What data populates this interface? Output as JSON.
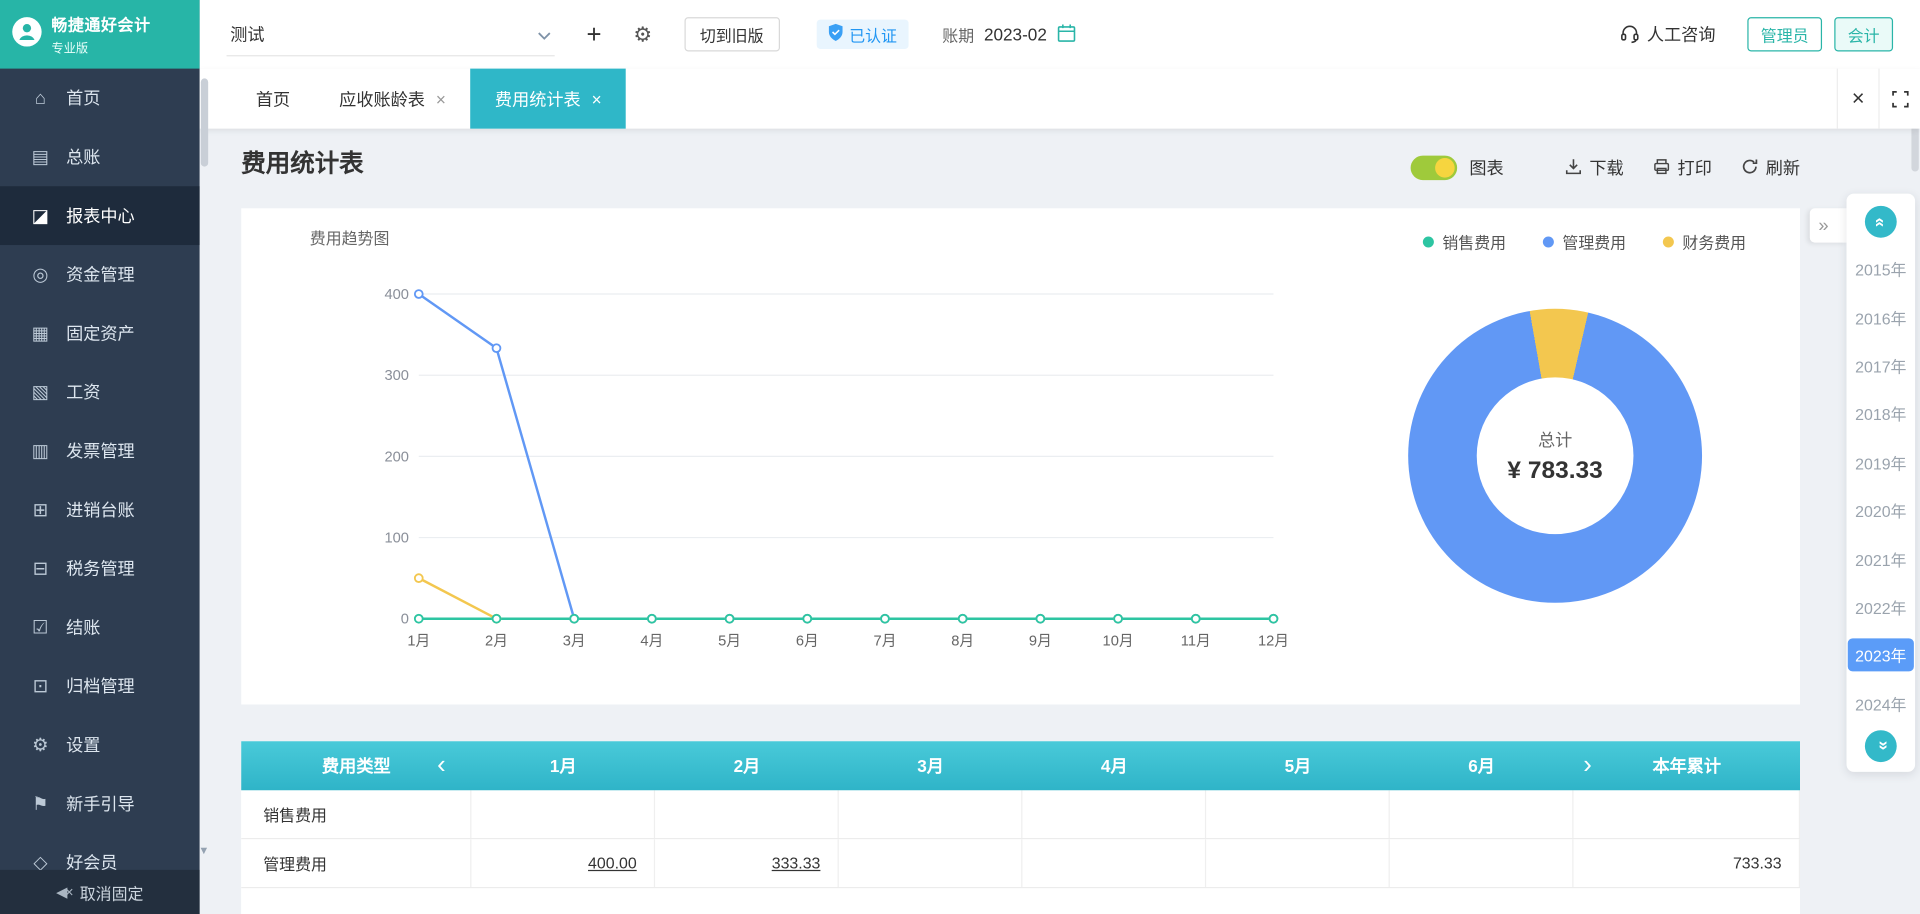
{
  "app": {
    "brand": "畅捷通好会计",
    "edition": "专业版",
    "account_set": "测试",
    "switch_old_label": "切到旧版",
    "certified_label": "已认证",
    "period_label": "账期",
    "period_value": "2023-02",
    "support_label": "人工咨询",
    "admin_label": "管理员",
    "accountant_label": "会计",
    "accent_teal": "#2ab5a8",
    "accent_cyan": "#2fb7c8"
  },
  "sidebar": {
    "items": [
      {
        "label": "首页",
        "icon": "home-icon"
      },
      {
        "label": "总账",
        "icon": "ledger-icon"
      },
      {
        "label": "报表中心",
        "icon": "report-center-icon",
        "active": true
      },
      {
        "label": "资金管理",
        "icon": "funds-icon"
      },
      {
        "label": "固定资产",
        "icon": "fixed-assets-icon"
      },
      {
        "label": "工资",
        "icon": "salary-icon"
      },
      {
        "label": "发票管理",
        "icon": "invoice-icon"
      },
      {
        "label": "进销台账",
        "icon": "inventory-icon"
      },
      {
        "label": "税务管理",
        "icon": "tax-icon"
      },
      {
        "label": "结账",
        "icon": "closing-icon"
      },
      {
        "label": "归档管理",
        "icon": "archive-icon"
      },
      {
        "label": "设置",
        "icon": "settings-icon"
      },
      {
        "label": "新手引导",
        "icon": "guide-icon"
      },
      {
        "label": "好会员",
        "icon": "member-icon",
        "partial": true
      }
    ],
    "unpin_label": "取消固定"
  },
  "tabs": [
    {
      "label": "首页",
      "closable": false
    },
    {
      "label": "应收账龄表",
      "closable": true
    },
    {
      "label": "费用统计表",
      "closable": true,
      "active": true
    }
  ],
  "page": {
    "title": "费用统计表",
    "toolbar": {
      "chart_toggle_label": "图表",
      "download_label": "下载",
      "print_label": "打印",
      "refresh_label": "刷新"
    }
  },
  "chart_data": [
    {
      "type": "line",
      "title": "费用趋势图",
      "x_categories": [
        "1月",
        "2月",
        "3月",
        "4月",
        "5月",
        "6月",
        "7月",
        "8月",
        "9月",
        "10月",
        "11月",
        "12月"
      ],
      "ylim": [
        0,
        400
      ],
      "yticks": [
        0,
        100,
        200,
        300,
        400
      ],
      "grid": true,
      "legend_position": "top-right",
      "series": [
        {
          "name": "销售费用",
          "color": "#2dc5a2",
          "values": [
            0,
            0,
            0,
            0,
            0,
            0,
            0,
            0,
            0,
            0,
            0,
            0
          ]
        },
        {
          "name": "管理费用",
          "color": "#6198f5",
          "values": [
            400,
            333.33,
            0,
            0,
            0,
            0,
            0,
            0,
            0,
            0,
            0,
            0
          ]
        },
        {
          "name": "财务费用",
          "color": "#f3c74f",
          "values": [
            50,
            0,
            0,
            0,
            0,
            0,
            0,
            0,
            0,
            0,
            0,
            0
          ]
        }
      ]
    },
    {
      "type": "pie",
      "subtype": "donut",
      "center_label": "总计",
      "center_value": "¥ 783.33",
      "start_angle": -347,
      "series": [
        {
          "name": "管理费用",
          "color": "#6198f5",
          "value": 733.33
        },
        {
          "name": "财务费用",
          "color": "#f3c74f",
          "value": 50
        },
        {
          "name": "销售费用",
          "color": "#2dc5a2",
          "value": 0
        }
      ]
    }
  ],
  "table": {
    "columns": [
      {
        "label": "费用类型"
      },
      {
        "label": "1月"
      },
      {
        "label": "2月"
      },
      {
        "label": "3月"
      },
      {
        "label": "4月"
      },
      {
        "label": "5月"
      },
      {
        "label": "6月"
      },
      {
        "label": "本年累计"
      }
    ],
    "prev_arrow": "‹",
    "next_arrow": "›",
    "rows": [
      {
        "name": "销售费用",
        "cells": [
          {
            "text": ""
          },
          {
            "text": ""
          },
          {
            "text": ""
          },
          {
            "text": ""
          },
          {
            "text": ""
          },
          {
            "text": ""
          },
          {
            "text": ""
          }
        ]
      },
      {
        "name": "管理费用",
        "cells": [
          {
            "text": "400.00",
            "link": true
          },
          {
            "text": "333.33",
            "link": true
          },
          {
            "text": ""
          },
          {
            "text": ""
          },
          {
            "text": ""
          },
          {
            "text": ""
          },
          {
            "text": "733.33"
          }
        ]
      }
    ]
  },
  "year_panel": {
    "years": [
      "2015年",
      "2016年",
      "2017年",
      "2018年",
      "2019年",
      "2020年",
      "2021年",
      "2022年",
      "2023年",
      "2024年"
    ],
    "selected": "2023年",
    "selected_color": "#5b9cf8"
  }
}
